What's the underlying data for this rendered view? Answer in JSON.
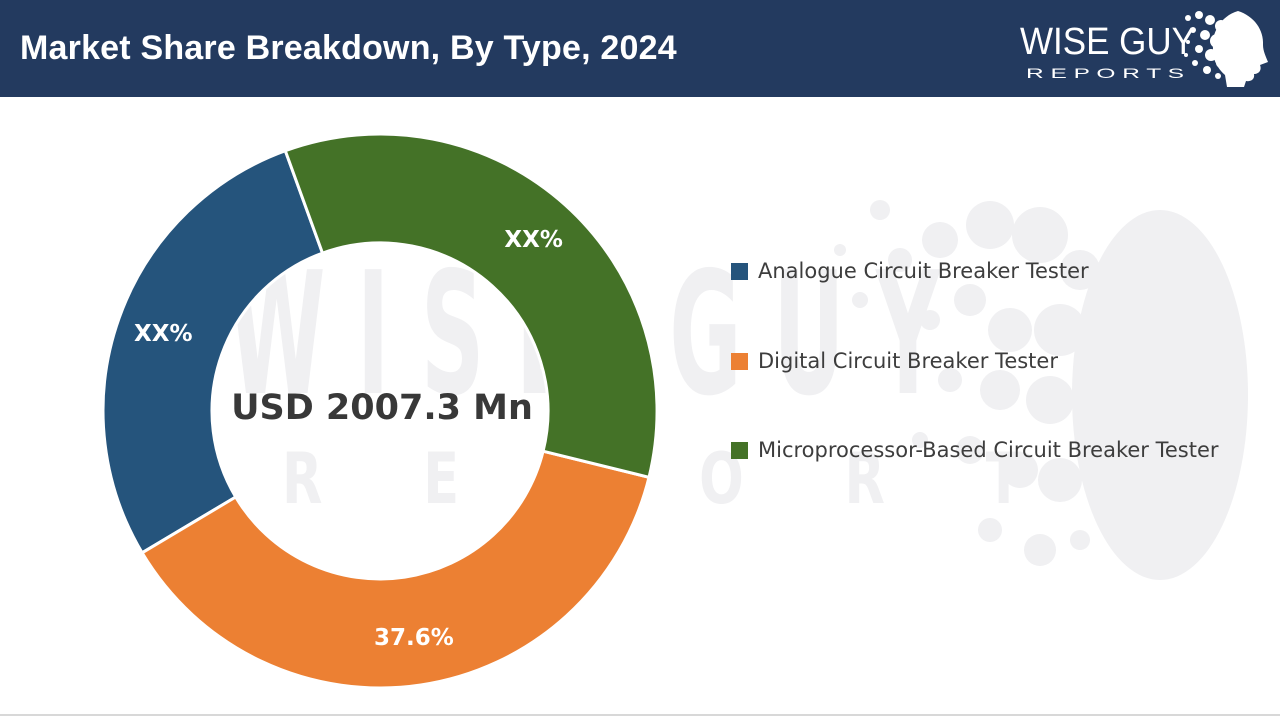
{
  "header": {
    "title": "Market Share Breakdown, By Type, 2024",
    "bg_color": "#233A5F",
    "logo_line1": "WISE GUY",
    "logo_line2": "R E P O R T S"
  },
  "watermark": {
    "line1": "WISE GUY",
    "line2": "R E P O R T S"
  },
  "chart_data": {
    "type": "donut",
    "title": "Market Share Breakdown, By Type, 2024",
    "center_label": "USD 2007.3 Mn",
    "start_angle_deg": 110,
    "direction": "counterclockwise",
    "legend_position": "right",
    "segments": [
      {
        "name": "Analogue Circuit Breaker Tester",
        "displayed_label": "XX%",
        "value_pct": 28.0,
        "color": "#25547C"
      },
      {
        "name": "Digital Circuit Breaker Tester",
        "displayed_label": "37.6%",
        "value_pct": 37.6,
        "color": "#EC8033"
      },
      {
        "name": "Microprocessor-Based Circuit Breaker Tester",
        "displayed_label": "XX%",
        "value_pct": 34.4,
        "color": "#447227"
      }
    ]
  },
  "colors": {
    "header_navy": "#233A5F",
    "watermark_gray": "#f0f0f2",
    "center_text": "#383838",
    "legend_text": "#3d3d3d",
    "footer_line": "#d8d8d8"
  }
}
